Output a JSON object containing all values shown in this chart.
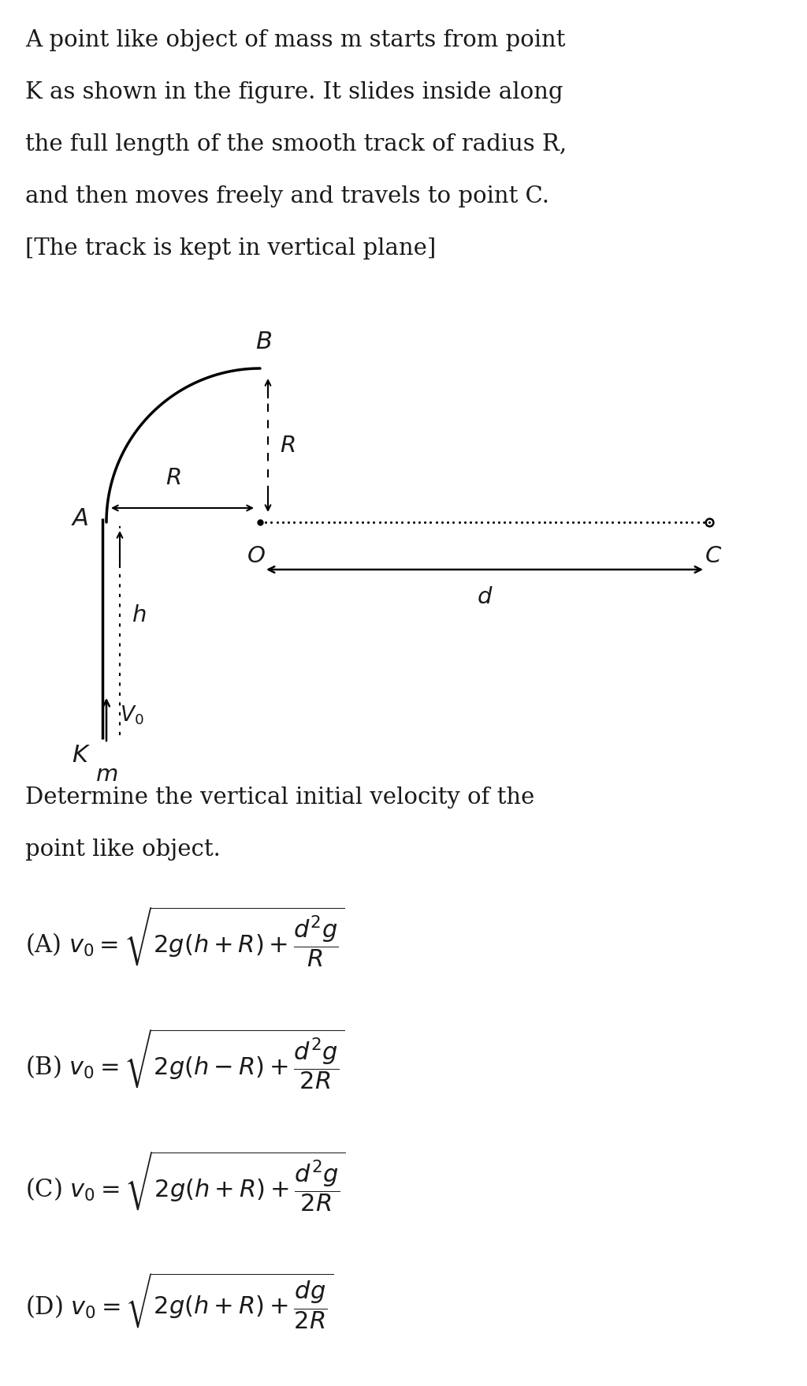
{
  "background_color": "#ffffff",
  "text_color": "#1a1a1a",
  "para1": "A point like object of mass m starts from point",
  "para2": "K as shown in the figure. It slides inside along",
  "para3": "the full length of the smooth track of radius R,",
  "para4": "and then moves freely and travels to point C.",
  "para5": "[The track is kept in vertical plane]",
  "question1": "Determine the vertical initial velocity of the",
  "question2": "point like object.",
  "optA": "(A) $v_0 = \\sqrt{2g(h + R) + \\dfrac{d^{2}g}{R}}$",
  "optB": "(B) $v_0 = \\sqrt{2g(h - R) + \\dfrac{d^{2}g}{2R}}$",
  "optC": "(C) $v_0 = \\sqrt{2g(h + R) + \\dfrac{d^{2}g}{2R}}$",
  "optD": "(D) $v_0 = \\sqrt{2g(h + R) + \\dfrac{dg}{2R}}$",
  "font_size_para": 21,
  "font_size_opt": 22
}
